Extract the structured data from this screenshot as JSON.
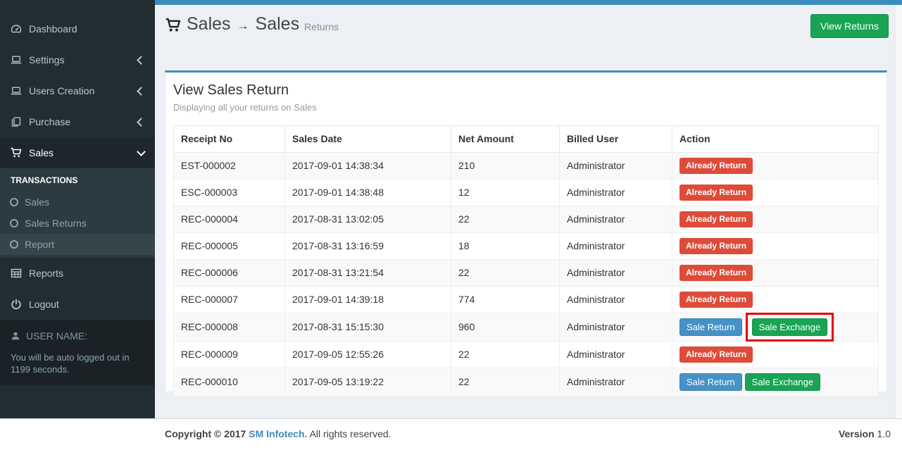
{
  "colors": {
    "accent_blue": "#3c8dbc",
    "green": "#18a454",
    "red": "#dd4b39",
    "highlight_red": "#e60000",
    "sidebar_bg": "#222d32",
    "sidebar_submenu_bg": "#2c3b41",
    "sidebar_active_bg": "#1e282c",
    "content_bg": "#ecf0f5"
  },
  "sidebar": {
    "menu": [
      {
        "label": "Dashboard",
        "icon": "dashboard-icon"
      },
      {
        "label": "Settings",
        "icon": "laptop-icon",
        "chevron": "left"
      },
      {
        "label": "Users Creation",
        "icon": "laptop-icon",
        "chevron": "left"
      },
      {
        "label": "Purchase",
        "icon": "copy-icon",
        "chevron": "left"
      },
      {
        "label": "Sales",
        "icon": "cart-icon",
        "chevron": "down",
        "active": true
      }
    ],
    "submenu_header": "TRANSACTIONS",
    "submenu": [
      "Sales",
      "Sales Returns",
      "Report"
    ],
    "menu_bottom": [
      {
        "label": "Reports",
        "icon": "table-icon"
      },
      {
        "label": "Logout",
        "icon": "power-icon"
      }
    ],
    "user_label": "USER NAME:",
    "auto_logout_text": "You will be auto logged out in 1199 seconds."
  },
  "header": {
    "breadcrumb": {
      "parent": "Sales",
      "arrow": "→",
      "current": "Sales",
      "sub": "Returns"
    },
    "action_button": "View Returns"
  },
  "panel": {
    "title": "View Sales Return",
    "subtitle": "Displaying all your returns on Sales"
  },
  "table": {
    "columns": [
      "Receipt No",
      "Sales Date",
      "Net Amount",
      "Billed User",
      "Action"
    ],
    "rows": [
      {
        "receipt_no": "EST-000002",
        "sales_date": "2017-09-01 14:38:34",
        "net_amount": "210",
        "billed_user": "Administrator",
        "actions": [
          {
            "label": "Already Return",
            "color": "red"
          }
        ]
      },
      {
        "receipt_no": "ESC-000003",
        "sales_date": "2017-09-01 14:38:48",
        "net_amount": "12",
        "billed_user": "Administrator",
        "actions": [
          {
            "label": "Already Return",
            "color": "red"
          }
        ]
      },
      {
        "receipt_no": "REC-000004",
        "sales_date": "2017-08-31 13:02:05",
        "net_amount": "22",
        "billed_user": "Administrator",
        "actions": [
          {
            "label": "Already Return",
            "color": "red"
          }
        ]
      },
      {
        "receipt_no": "REC-000005",
        "sales_date": "2017-08-31 13:16:59",
        "net_amount": "18",
        "billed_user": "Administrator",
        "actions": [
          {
            "label": "Already Return",
            "color": "red"
          }
        ]
      },
      {
        "receipt_no": "REC-000006",
        "sales_date": "2017-08-31 13:21:54",
        "net_amount": "22",
        "billed_user": "Administrator",
        "actions": [
          {
            "label": "Already Return",
            "color": "red"
          }
        ]
      },
      {
        "receipt_no": "REC-000007",
        "sales_date": "2017-09-01 14:39:18",
        "net_amount": "774",
        "billed_user": "Administrator",
        "actions": [
          {
            "label": "Already Return",
            "color": "red"
          }
        ]
      },
      {
        "receipt_no": "REC-000008",
        "sales_date": "2017-08-31 15:15:30",
        "net_amount": "960",
        "billed_user": "Administrator",
        "actions": [
          {
            "label": "Sale Return",
            "color": "blue"
          },
          {
            "label": "Sale Exchange",
            "color": "green",
            "highlighted": true
          }
        ]
      },
      {
        "receipt_no": "REC-000009",
        "sales_date": "2017-09-05 12:55:26",
        "net_amount": "22",
        "billed_user": "Administrator",
        "actions": [
          {
            "label": "Already Return",
            "color": "red"
          }
        ]
      },
      {
        "receipt_no": "REC-000010",
        "sales_date": "2017-09-05 13:19:22",
        "net_amount": "22",
        "billed_user": "Administrator",
        "actions": [
          {
            "label": "Sale Return",
            "color": "blue"
          },
          {
            "label": "Sale Exchange",
            "color": "green"
          }
        ]
      }
    ]
  },
  "footer": {
    "copyright_prefix": "Copyright © 2017",
    "company": "SM Infotech.",
    "suffix": "All rights reserved.",
    "version_label": "Version",
    "version_value": "1.0"
  }
}
